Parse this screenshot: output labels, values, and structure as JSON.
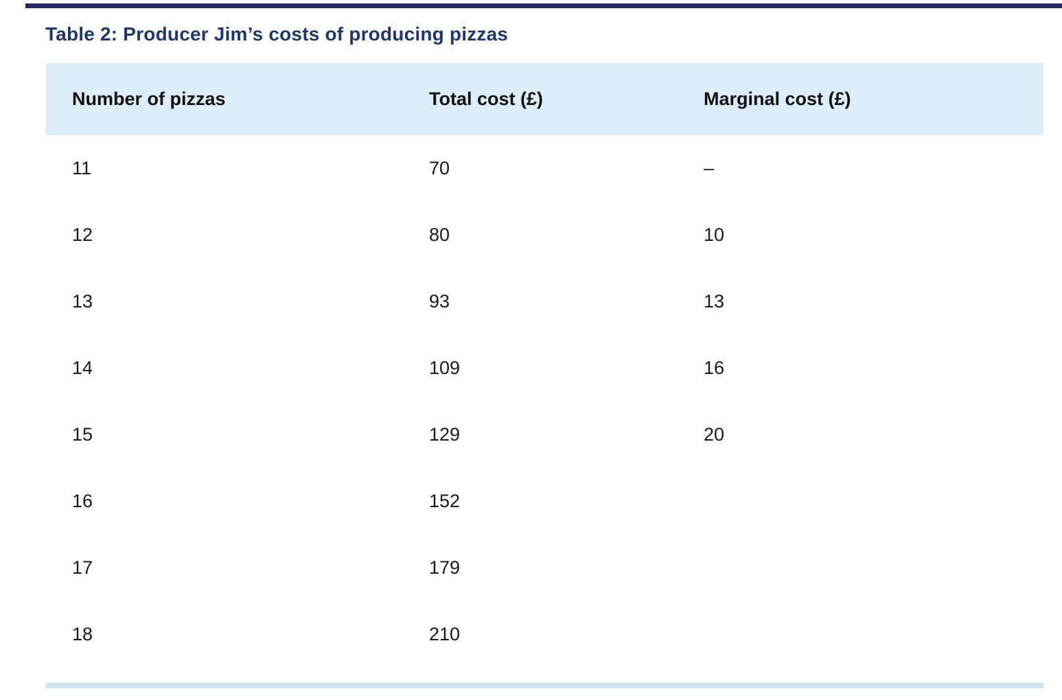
{
  "page": {
    "title": "Table 2: Producer Jim’s costs of producing pizzas"
  },
  "table": {
    "headers": [
      "Number of pizzas",
      "Total cost (£)",
      "Marginal cost (£)"
    ],
    "rows": [
      [
        "11",
        "70",
        "–"
      ],
      [
        "12",
        "80",
        "10"
      ],
      [
        "13",
        "93",
        "13"
      ],
      [
        "14",
        "109",
        "16"
      ],
      [
        "15",
        "129",
        "20"
      ],
      [
        "16",
        "152",
        ""
      ],
      [
        "17",
        "179",
        ""
      ],
      [
        "18",
        "210",
        ""
      ]
    ]
  },
  "colors": {
    "top_rule": "#242a5e",
    "title_text": "#1f3864",
    "header_band": "#ddedf7",
    "bottom_rule": "#cfe7f3"
  }
}
